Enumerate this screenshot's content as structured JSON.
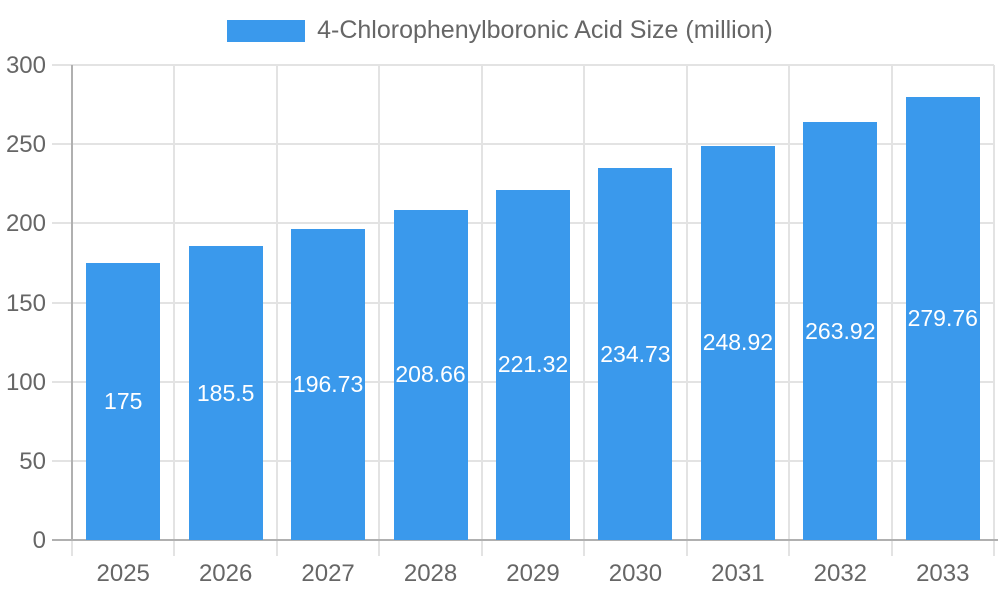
{
  "legend": {
    "label": "4-Chlorophenylboronic Acid Size (million)"
  },
  "chart_data": {
    "type": "bar",
    "title": "",
    "series_name": "4-Chlorophenylboronic Acid Size (million)",
    "categories": [
      "2025",
      "2026",
      "2027",
      "2028",
      "2029",
      "2030",
      "2031",
      "2032",
      "2033"
    ],
    "values": [
      175,
      185.5,
      196.73,
      208.66,
      221.32,
      234.73,
      248.92,
      263.92,
      279.76
    ],
    "value_labels": [
      "175",
      "185.5",
      "196.73",
      "208.66",
      "221.32",
      "234.73",
      "248.92",
      "263.92",
      "279.76"
    ],
    "xlabel": "",
    "ylabel": "",
    "ylim": [
      0,
      300
    ],
    "ytick_interval": 50,
    "yticks": [
      "0",
      "50",
      "100",
      "150",
      "200",
      "250",
      "300"
    ],
    "grid": true,
    "legend_position": "top",
    "value_label_position": "center-of-bar",
    "colors": {
      "bar": "#3A99EC",
      "tick_label": "#666666",
      "legend_text": "#666666",
      "gridline": "#E3E3E3",
      "axis_line": "#B0B0B0",
      "value_label": "#FFFFFF"
    }
  }
}
